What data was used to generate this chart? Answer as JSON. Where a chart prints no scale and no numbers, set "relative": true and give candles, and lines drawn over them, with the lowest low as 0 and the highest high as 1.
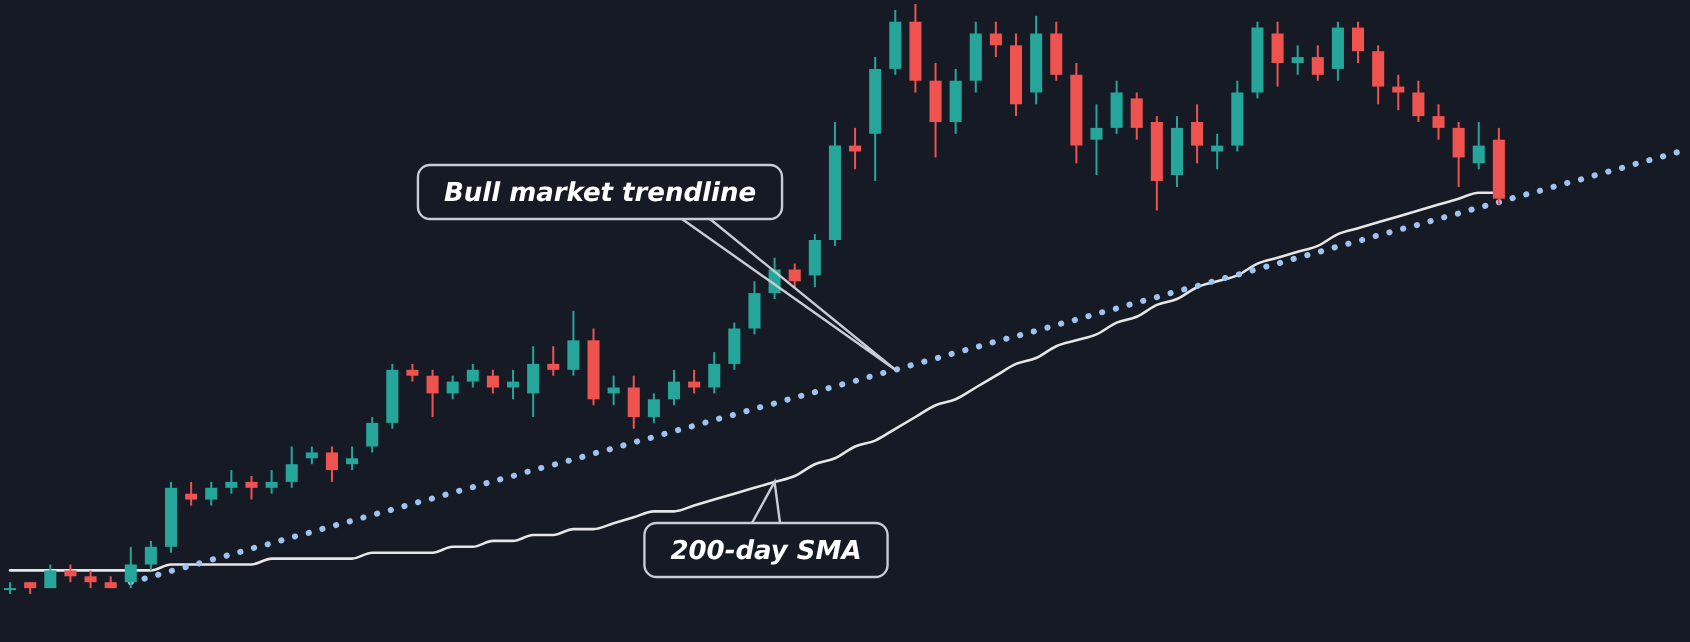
{
  "chart_data": {
    "type": "candlestick",
    "relative": true,
    "marker": "none",
    "categories": [
      null,
      null,
      null,
      null,
      null,
      null,
      null,
      null,
      null,
      null,
      null,
      null,
      null,
      null,
      null,
      null,
      null,
      null,
      null,
      null,
      null,
      null,
      null,
      null,
      null,
      null,
      null,
      null,
      null,
      null,
      null,
      null,
      null,
      null,
      null,
      null,
      null,
      null,
      null,
      null,
      null,
      null,
      null,
      null,
      null,
      null,
      null,
      null,
      null,
      null,
      null,
      null,
      null,
      null,
      null,
      null,
      null,
      null,
      null,
      null,
      null,
      null,
      null,
      null,
      null,
      null,
      null,
      null,
      null,
      null,
      null,
      null,
      null,
      null,
      null,
      null,
      null,
      null,
      null,
      null,
      null,
      null,
      null,
      null
    ],
    "ohlc": [
      [
        0.01,
        0.02,
        0,
        0.01
      ],
      [
        0.02,
        0.02,
        0,
        0.01
      ],
      [
        0.01,
        0.05,
        0.01,
        0.04
      ],
      [
        0.04,
        0.05,
        0.02,
        0.03
      ],
      [
        0.03,
        0.04,
        0.01,
        0.02
      ],
      [
        0.02,
        0.03,
        0.01,
        0.01
      ],
      [
        0.02,
        0.08,
        0.01,
        0.05
      ],
      [
        0.05,
        0.09,
        0.04,
        0.08
      ],
      [
        0.08,
        0.19,
        0.07,
        0.18
      ],
      [
        0.17,
        0.19,
        0.15,
        0.16
      ],
      [
        0.16,
        0.19,
        0.15,
        0.18
      ],
      [
        0.18,
        0.21,
        0.17,
        0.19
      ],
      [
        0.19,
        0.2,
        0.16,
        0.18
      ],
      [
        0.18,
        0.21,
        0.17,
        0.19
      ],
      [
        0.19,
        0.25,
        0.18,
        0.22
      ],
      [
        0.23,
        0.25,
        0.22,
        0.24
      ],
      [
        0.24,
        0.25,
        0.19,
        0.21
      ],
      [
        0.22,
        0.25,
        0.21,
        0.23
      ],
      [
        0.25,
        0.3,
        0.24,
        0.29
      ],
      [
        0.29,
        0.39,
        0.28,
        0.38
      ],
      [
        0.38,
        0.39,
        0.36,
        0.37
      ],
      [
        0.37,
        0.38,
        0.3,
        0.34
      ],
      [
        0.34,
        0.37,
        0.33,
        0.36
      ],
      [
        0.36,
        0.39,
        0.35,
        0.38
      ],
      [
        0.37,
        0.38,
        0.34,
        0.35
      ],
      [
        0.35,
        0.38,
        0.33,
        0.36
      ],
      [
        0.34,
        0.42,
        0.3,
        0.39
      ],
      [
        0.39,
        0.42,
        0.37,
        0.38
      ],
      [
        0.38,
        0.48,
        0.37,
        0.43
      ],
      [
        0.43,
        0.45,
        0.32,
        0.33
      ],
      [
        0.34,
        0.37,
        0.32,
        0.35
      ],
      [
        0.35,
        0.37,
        0.28,
        0.3
      ],
      [
        0.3,
        0.34,
        0.29,
        0.33
      ],
      [
        0.33,
        0.38,
        0.32,
        0.36
      ],
      [
        0.36,
        0.38,
        0.34,
        0.35
      ],
      [
        0.35,
        0.41,
        0.34,
        0.39
      ],
      [
        0.39,
        0.46,
        0.38,
        0.45
      ],
      [
        0.45,
        0.53,
        0.44,
        0.51
      ],
      [
        0.51,
        0.57,
        0.5,
        0.55
      ],
      [
        0.55,
        0.56,
        0.52,
        0.53
      ],
      [
        0.54,
        0.61,
        0.52,
        0.6
      ],
      [
        0.6,
        0.8,
        0.59,
        0.76
      ],
      [
        0.76,
        0.79,
        0.72,
        0.75
      ],
      [
        0.78,
        0.91,
        0.7,
        0.89
      ],
      [
        0.89,
        0.99,
        0.88,
        0.97
      ],
      [
        0.97,
        1,
        0.85,
        0.87
      ],
      [
        0.87,
        0.9,
        0.74,
        0.8
      ],
      [
        0.8,
        0.89,
        0.78,
        0.87
      ],
      [
        0.87,
        0.97,
        0.85,
        0.95
      ],
      [
        0.95,
        0.97,
        0.91,
        0.93
      ],
      [
        0.93,
        0.95,
        0.81,
        0.83
      ],
      [
        0.85,
        0.98,
        0.83,
        0.95
      ],
      [
        0.95,
        0.97,
        0.87,
        0.88
      ],
      [
        0.88,
        0.9,
        0.73,
        0.76
      ],
      [
        0.77,
        0.83,
        0.71,
        0.79
      ],
      [
        0.79,
        0.87,
        0.78,
        0.85
      ],
      [
        0.84,
        0.85,
        0.77,
        0.79
      ],
      [
        0.8,
        0.81,
        0.65,
        0.7
      ],
      [
        0.71,
        0.81,
        0.69,
        0.79
      ],
      [
        0.8,
        0.83,
        0.73,
        0.76
      ],
      [
        0.75,
        0.78,
        0.72,
        0.76
      ],
      [
        0.76,
        0.87,
        0.75,
        0.85
      ],
      [
        0.85,
        0.97,
        0.84,
        0.96
      ],
      [
        0.95,
        0.97,
        0.86,
        0.9
      ],
      [
        0.9,
        0.93,
        0.88,
        0.91
      ],
      [
        0.91,
        0.93,
        0.87,
        0.88
      ],
      [
        0.89,
        0.97,
        0.87,
        0.96
      ],
      [
        0.96,
        0.97,
        0.9,
        0.92
      ],
      [
        0.92,
        0.93,
        0.83,
        0.86
      ],
      [
        0.86,
        0.88,
        0.82,
        0.85
      ],
      [
        0.85,
        0.87,
        0.8,
        0.81
      ],
      [
        0.81,
        0.83,
        0.77,
        0.79
      ],
      [
        0.79,
        0.8,
        0.69,
        0.74
      ],
      [
        0.73,
        0.8,
        0.72,
        0.76
      ],
      [
        0.77,
        0.79,
        0.66,
        0.67
      ],
      null,
      null,
      null,
      null,
      null,
      null,
      null,
      null,
      null
    ],
    "colors": [
      "#26a69a",
      "#ef5350",
      "#26a69a",
      "#ef5350",
      "#ef5350",
      "#ef5350",
      "#26a69a",
      "#26a69a",
      "#26a69a",
      "#ef5350",
      "#26a69a",
      "#26a69a",
      "#ef5350",
      "#26a69a",
      "#26a69a",
      "#26a69a",
      "#ef5350",
      "#26a69a",
      "#26a69a",
      "#26a69a",
      "#ef5350",
      "#ef5350",
      "#26a69a",
      "#26a69a",
      "#ef5350",
      "#26a69a",
      "#26a69a",
      "#ef5350",
      "#26a69a",
      "#ef5350",
      "#26a69a",
      "#ef5350",
      "#26a69a",
      "#26a69a",
      "#ef5350",
      "#26a69a",
      "#26a69a",
      "#26a69a",
      "#26a69a",
      "#ef5350",
      "#26a69a",
      "#26a69a",
      "#ef5350",
      "#26a69a",
      "#26a69a",
      "#ef5350",
      "#ef5350",
      "#26a69a",
      "#26a69a",
      "#ef5350",
      "#ef5350",
      "#26a69a",
      "#ef5350",
      "#ef5350",
      "#26a69a",
      "#26a69a",
      "#ef5350",
      "#ef5350",
      "#26a69a",
      "#ef5350",
      "#26a69a",
      "#26a69a",
      "#26a69a",
      "#ef5350",
      "#26a69a",
      "#ef5350",
      "#26a69a",
      "#ef5350",
      "#ef5350",
      "#ef5350",
      "#ef5350",
      "#ef5350",
      "#ef5350",
      "#26a69a",
      "#ef5350",
      null,
      null,
      null,
      null,
      null,
      null,
      null,
      null,
      null
    ],
    "series": [
      {
        "type": "line",
        "color": "#9ec3f0",
        "line_style": "dotted",
        "values": [
          null,
          null,
          null,
          null,
          null,
          null,
          0.02,
          0.029,
          0.039,
          0.048,
          0.058,
          0.067,
          0.077,
          0.086,
          0.096,
          0.105,
          0.115,
          0.124,
          0.134,
          0.143,
          0.153,
          0.162,
          0.172,
          0.181,
          0.191,
          0.2,
          0.21,
          0.219,
          0.228,
          0.238,
          0.247,
          0.257,
          0.266,
          0.276,
          0.285,
          0.295,
          0.304,
          0.314,
          0.323,
          0.333,
          0.342,
          0.352,
          0.361,
          0.371,
          0.38,
          0.39,
          0.399,
          0.409,
          0.418,
          0.428,
          0.437,
          0.446,
          0.456,
          0.465,
          0.475,
          0.484,
          0.494,
          0.503,
          0.513,
          0.522,
          0.532,
          0.541,
          0.551,
          0.56,
          0.57,
          0.579,
          0.589,
          0.598,
          0.608,
          0.617,
          0.626,
          0.636,
          0.645,
          0.655,
          0.664,
          0.674,
          0.683,
          0.693,
          0.702,
          0.712,
          0.721,
          0.731,
          0.74,
          0.75
        ]
      },
      {
        "type": "line",
        "color": "#e6e6e6",
        "line_style": "solid",
        "values": [
          0.04,
          0.04,
          0.04,
          0.04,
          0.04,
          0.04,
          0.04,
          0.04,
          0.05,
          0.05,
          0.05,
          0.05,
          0.05,
          0.06,
          0.06,
          0.06,
          0.06,
          0.06,
          0.07,
          0.07,
          0.07,
          0.07,
          0.08,
          0.08,
          0.09,
          0.09,
          0.1,
          0.1,
          0.11,
          0.11,
          0.12,
          0.13,
          0.14,
          0.14,
          0.15,
          0.16,
          0.17,
          0.18,
          0.19,
          0.2,
          0.22,
          0.23,
          0.25,
          0.26,
          0.28,
          0.3,
          0.32,
          0.33,
          0.35,
          0.37,
          0.39,
          0.4,
          0.42,
          0.43,
          0.44,
          0.46,
          0.47,
          0.49,
          0.5,
          0.52,
          0.53,
          0.54,
          0.56,
          0.57,
          0.58,
          0.59,
          0.61,
          0.62,
          0.63,
          0.64,
          0.65,
          0.66,
          0.67,
          0.68,
          0.68,
          null,
          null,
          null,
          null,
          null,
          null,
          null,
          null,
          null
        ]
      }
    ],
    "annotations": [
      "Bull market trendline",
      "200-day SMA"
    ]
  }
}
